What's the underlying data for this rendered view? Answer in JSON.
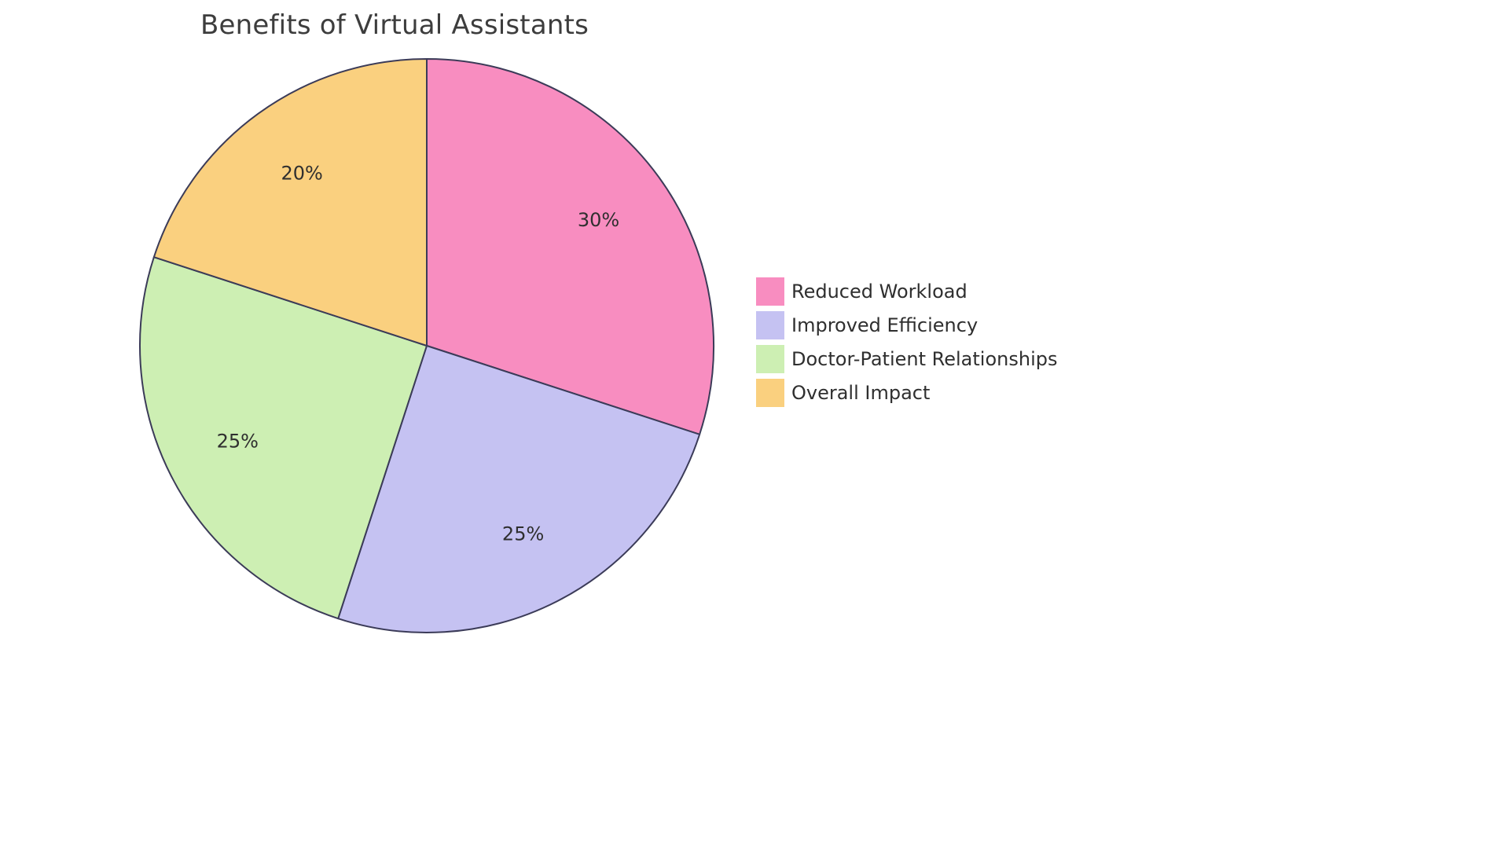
{
  "chart_data": {
    "type": "pie",
    "title": "Benefits of Virtual Assistants",
    "direction": "clockwise",
    "start_angle_deg": 0,
    "legend_position": "right",
    "stroke_color": "#3b3b58",
    "label_color": "#2f2f2f",
    "slices": [
      {
        "label": "Reduced Workload",
        "value": 30,
        "percent_label": "30%",
        "color": "#f88dc0"
      },
      {
        "label": "Improved Efficiency",
        "value": 25,
        "percent_label": "25%",
        "color": "#c5c2f2"
      },
      {
        "label": "Doctor-Patient Relationships",
        "value": 25,
        "percent_label": "25%",
        "color": "#cdefb3"
      },
      {
        "label": "Overall Impact",
        "value": 20,
        "percent_label": "20%",
        "color": "#fad07f"
      }
    ]
  }
}
